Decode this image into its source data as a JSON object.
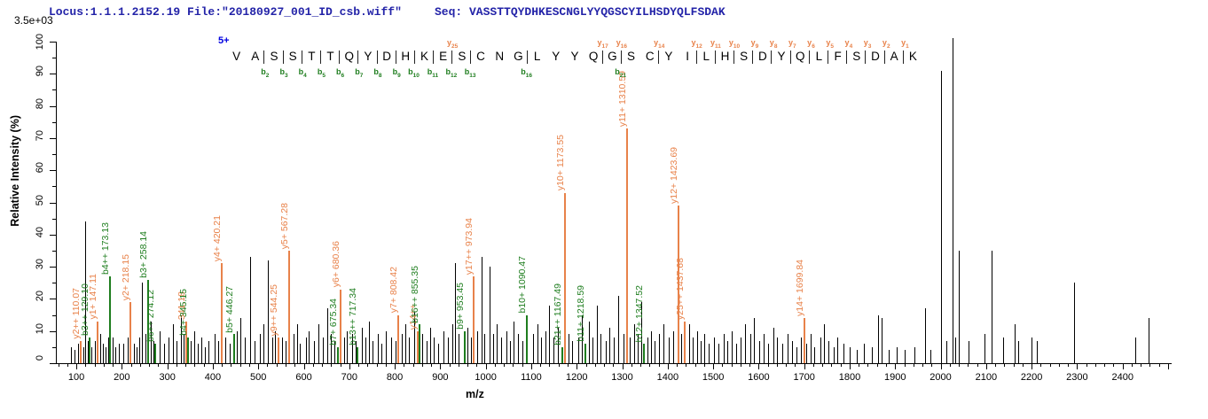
{
  "header": {
    "locus_file": "Locus:1.1.1.2152.19 File:\"20180927_001_ID_csb.wiff\"",
    "seq": "Seq: VASSTTQYDHKESCNGLYYQGSCYILHSDYQLFSDAK"
  },
  "precursor_charge": "5+",
  "intensity_scale": "3.5e+03",
  "colors": {
    "y_ion": "#e8824a",
    "b_ion": "#1e7d1e",
    "unassigned": "#000000",
    "header_text": "#2323a8",
    "charge": "#0000e0"
  },
  "peptide": {
    "residues": [
      {
        "aa": "V"
      },
      {
        "aa": "A",
        "b": 2
      },
      {
        "aa": "S",
        "b": 3
      },
      {
        "aa": "S",
        "b": 4
      },
      {
        "aa": "T",
        "b": 5
      },
      {
        "aa": "T",
        "b": 6
      },
      {
        "aa": "Q",
        "b": 7
      },
      {
        "aa": "Y",
        "b": 8
      },
      {
        "aa": "D",
        "b": 9
      },
      {
        "aa": "H",
        "b": 10
      },
      {
        "aa": "K",
        "b": 11
      },
      {
        "aa": "E",
        "b": 12,
        "y": 25
      },
      {
        "aa": "S",
        "b": 13
      },
      {
        "aa": "C"
      },
      {
        "aa": "N"
      },
      {
        "aa": "G",
        "b": 16
      },
      {
        "aa": "L"
      },
      {
        "aa": "Y"
      },
      {
        "aa": "Y"
      },
      {
        "aa": "Q",
        "y": 17
      },
      {
        "aa": "G",
        "b": 21,
        "y": 16
      },
      {
        "aa": "S"
      },
      {
        "aa": "C",
        "y": 14
      },
      {
        "aa": "Y"
      },
      {
        "aa": "I",
        "y": 12
      },
      {
        "aa": "L",
        "y": 11
      },
      {
        "aa": "H",
        "y": 10
      },
      {
        "aa": "S",
        "y": 9
      },
      {
        "aa": "D",
        "y": 8
      },
      {
        "aa": "Y",
        "y": 7
      },
      {
        "aa": "Q",
        "y": 6
      },
      {
        "aa": "L",
        "y": 5
      },
      {
        "aa": "F",
        "y": 4
      },
      {
        "aa": "S",
        "y": 3
      },
      {
        "aa": "D",
        "y": 2
      },
      {
        "aa": "A",
        "y": 1
      },
      {
        "aa": "K"
      }
    ]
  },
  "chart_data": {
    "type": "bar",
    "title": "",
    "xlabel": "m/z",
    "ylabel": "Relative Intensity (%)",
    "xlim": [
      55,
      2500
    ],
    "ylim": [
      0,
      100
    ],
    "x_major_tick_step": 100,
    "x_minor_tick_step": 20,
    "x_tick_label_min": 100,
    "x_tick_label_max": 2400,
    "y_tick_step": 10,
    "y_minor_tick_step": 5,
    "grid": false,
    "legend": "none",
    "series": [
      {
        "name": "y-ions",
        "color": "#e8824a",
        "points": [
          {
            "mz": 110.07,
            "rel": 7,
            "label": "y2++ 110.07"
          },
          {
            "mz": 147.11,
            "rel": 13,
            "label": "y1+ 147.11"
          },
          {
            "mz": 218.15,
            "rel": 19,
            "label": "y2+ 218.15"
          },
          {
            "mz": 341.18,
            "rel": 13,
            "label": "341.18"
          },
          {
            "mz": 420.21,
            "rel": 31,
            "label": "y4+ 420.21"
          },
          {
            "mz": 544.25,
            "rel": 8,
            "label": "y9++ 544.25"
          },
          {
            "mz": 567.28,
            "rel": 35,
            "label": "y5+ 567.28"
          },
          {
            "mz": 680.36,
            "rel": 23,
            "label": "y6+ 680.36"
          },
          {
            "mz": 808.42,
            "rel": 15,
            "label": "y7+ 808.42"
          },
          {
            "mz": 850.4,
            "rel": 10,
            "label": "y14++"
          },
          {
            "mz": 973.94,
            "rel": 27,
            "label": "y17++ 973.94"
          },
          {
            "mz": 1173.55,
            "rel": 53,
            "label": "y10+ 1173.55"
          },
          {
            "mz": 1310.59,
            "rel": 73,
            "label": "y11+ 1310.59"
          },
          {
            "mz": 1423.69,
            "rel": 49,
            "label": "y12+ 1423.69"
          },
          {
            "mz": 1437.68,
            "rel": 13,
            "label": "y25++ 1437.68"
          },
          {
            "mz": 1699.84,
            "rel": 14,
            "label": "y14+ 1699.84"
          }
        ]
      },
      {
        "name": "b-ions",
        "color": "#1e7d1e",
        "points": [
          {
            "mz": 129.1,
            "rel": 8,
            "label": "b3++ 129.10"
          },
          {
            "mz": 173.13,
            "rel": 27,
            "label": "b4++ 173.13"
          },
          {
            "mz": 258.14,
            "rel": 26,
            "label": "b3+ 258.14"
          },
          {
            "mz": 274.12,
            "rel": 6,
            "label": "b6++ 274.12"
          },
          {
            "mz": 345.15,
            "rel": 8,
            "label": "b4+ 345.15"
          },
          {
            "mz": 446.27,
            "rel": 9,
            "label": "b5+ 446.27"
          },
          {
            "mz": 675.34,
            "rel": 5,
            "label": "b7+ 675.34"
          },
          {
            "mz": 717.34,
            "rel": 5,
            "label": "b13++ 717.34"
          },
          {
            "mz": 855.35,
            "rel": 12,
            "label": "b16++ 855.35"
          },
          {
            "mz": 953.45,
            "rel": 10,
            "label": "b9+ 953.45"
          },
          {
            "mz": 1090.47,
            "rel": 15,
            "label": "b10+ 1090.47"
          },
          {
            "mz": 1167.49,
            "rel": 5,
            "label": "b21++ 1167.49"
          },
          {
            "mz": 1218.59,
            "rel": 6,
            "label": "b11+ 1218.59"
          },
          {
            "mz": 1347.52,
            "rel": 6,
            "label": "b12+ 1347.52"
          }
        ]
      },
      {
        "name": "unassigned",
        "color": "#000000",
        "points": [
          [
            88,
            5
          ],
          [
            96,
            4
          ],
          [
            104,
            6
          ],
          [
            116,
            5
          ],
          [
            120,
            44
          ],
          [
            126,
            7
          ],
          [
            133,
            5
          ],
          [
            141,
            7
          ],
          [
            152,
            9
          ],
          [
            158,
            6
          ],
          [
            164,
            5
          ],
          [
            170,
            8
          ],
          [
            179,
            8
          ],
          [
            186,
            5
          ],
          [
            193,
            6
          ],
          [
            204,
            6
          ],
          [
            212,
            8
          ],
          [
            226,
            6
          ],
          [
            232,
            5
          ],
          [
            239,
            8
          ],
          [
            245,
            25
          ],
          [
            251,
            9
          ],
          [
            263,
            13
          ],
          [
            269,
            7
          ],
          [
            284,
            10
          ],
          [
            293,
            6
          ],
          [
            302,
            8
          ],
          [
            312,
            12
          ],
          [
            320,
            7
          ],
          [
            329,
            15
          ],
          [
            336,
            9
          ],
          [
            352,
            7
          ],
          [
            360,
            10
          ],
          [
            367,
            6
          ],
          [
            374,
            8
          ],
          [
            383,
            5
          ],
          [
            391,
            7
          ],
          [
            404,
            9
          ],
          [
            412,
            7
          ],
          [
            428,
            8
          ],
          [
            437,
            6
          ],
          [
            444,
            5
          ],
          [
            452,
            10
          ],
          [
            460,
            14
          ],
          [
            470,
            8
          ],
          [
            482,
            33
          ],
          [
            491,
            7
          ],
          [
            503,
            9
          ],
          [
            512,
            12
          ],
          [
            521,
            32
          ],
          [
            530,
            8
          ],
          [
            537,
            10
          ],
          [
            552,
            8
          ],
          [
            560,
            7
          ],
          [
            578,
            9
          ],
          [
            585,
            12
          ],
          [
            592,
            6
          ],
          [
            604,
            8
          ],
          [
            611,
            10
          ],
          [
            622,
            7
          ],
          [
            633,
            12
          ],
          [
            641,
            8
          ],
          [
            652,
            17
          ],
          [
            660,
            9
          ],
          [
            668,
            7
          ],
          [
            688,
            8
          ],
          [
            695,
            10
          ],
          [
            706,
            9
          ],
          [
            714,
            7
          ],
          [
            727,
            11
          ],
          [
            735,
            8
          ],
          [
            744,
            13
          ],
          [
            752,
            7
          ],
          [
            763,
            9
          ],
          [
            771,
            6
          ],
          [
            781,
            10
          ],
          [
            792,
            8
          ],
          [
            801,
            7
          ],
          [
            815,
            9
          ],
          [
            823,
            12
          ],
          [
            831,
            8
          ],
          [
            843,
            16
          ],
          [
            861,
            9
          ],
          [
            870,
            7
          ],
          [
            878,
            11
          ],
          [
            886,
            8
          ],
          [
            895,
            6
          ],
          [
            908,
            10
          ],
          [
            916,
            8
          ],
          [
            926,
            12
          ],
          [
            933,
            31
          ],
          [
            941,
            9
          ],
          [
            960,
            11
          ],
          [
            968,
            8
          ],
          [
            981,
            10
          ],
          [
            990,
            33
          ],
          [
            997,
            9
          ],
          [
            1008,
            30
          ],
          [
            1016,
            9
          ],
          [
            1025,
            12
          ],
          [
            1034,
            8
          ],
          [
            1045,
            10
          ],
          [
            1053,
            7
          ],
          [
            1062,
            13
          ],
          [
            1071,
            9
          ],
          [
            1080,
            7
          ],
          [
            1104,
            9
          ],
          [
            1113,
            12
          ],
          [
            1121,
            8
          ],
          [
            1131,
            10
          ],
          [
            1140,
            18
          ],
          [
            1148,
            8
          ],
          [
            1158,
            11
          ],
          [
            1181,
            9
          ],
          [
            1190,
            7
          ],
          [
            1203,
            8
          ],
          [
            1211,
            15
          ],
          [
            1226,
            13
          ],
          [
            1235,
            8
          ],
          [
            1244,
            18
          ],
          [
            1253,
            9
          ],
          [
            1263,
            7
          ],
          [
            1272,
            11
          ],
          [
            1281,
            8
          ],
          [
            1292,
            21
          ],
          [
            1302,
            9
          ],
          [
            1317,
            8
          ],
          [
            1326,
            12
          ],
          [
            1335,
            9
          ],
          [
            1341,
            19
          ],
          [
            1355,
            8
          ],
          [
            1363,
            10
          ],
          [
            1371,
            7
          ],
          [
            1381,
            9
          ],
          [
            1390,
            12
          ],
          [
            1403,
            8
          ],
          [
            1412,
            10
          ],
          [
            1430,
            9
          ],
          [
            1447,
            12
          ],
          [
            1455,
            8
          ],
          [
            1465,
            10
          ],
          [
            1472,
            7
          ],
          [
            1481,
            9
          ],
          [
            1490,
            6
          ],
          [
            1502,
            8
          ],
          [
            1512,
            6
          ],
          [
            1524,
            9
          ],
          [
            1531,
            7
          ],
          [
            1540,
            10
          ],
          [
            1551,
            6
          ],
          [
            1561,
            8
          ],
          [
            1570,
            12
          ],
          [
            1581,
            9
          ],
          [
            1590,
            14
          ],
          [
            1601,
            7
          ],
          [
            1611,
            9
          ],
          [
            1621,
            6
          ],
          [
            1632,
            11
          ],
          [
            1641,
            8
          ],
          [
            1652,
            6
          ],
          [
            1663,
            9
          ],
          [
            1673,
            7
          ],
          [
            1684,
            5
          ],
          [
            1693,
            8
          ],
          [
            1705,
            6
          ],
          [
            1714,
            9
          ],
          [
            1723,
            5
          ],
          [
            1735,
            8
          ],
          [
            1744,
            12
          ],
          [
            1753,
            7
          ],
          [
            1764,
            5
          ],
          [
            1773,
            8
          ],
          [
            1786,
            6
          ],
          [
            1801,
            5
          ],
          [
            1815,
            4
          ],
          [
            1832,
            6
          ],
          [
            1848,
            5
          ],
          [
            1862,
            15
          ],
          [
            1871,
            14
          ],
          [
            1885,
            4
          ],
          [
            1904,
            5
          ],
          [
            1921,
            4
          ],
          [
            1942,
            5
          ],
          [
            1965,
            17
          ],
          [
            1978,
            4
          ],
          [
            2000,
            91
          ],
          [
            2012,
            7
          ],
          [
            2027,
            101
          ],
          [
            2033,
            8
          ],
          [
            2039,
            35
          ],
          [
            2061,
            7
          ],
          [
            2096,
            9
          ],
          [
            2112,
            35
          ],
          [
            2137,
            8
          ],
          [
            2163,
            12
          ],
          [
            2171,
            7
          ],
          [
            2200,
            8
          ],
          [
            2212,
            7
          ],
          [
            2294,
            25
          ],
          [
            2427,
            8
          ],
          [
            2457,
            14
          ]
        ]
      }
    ]
  }
}
